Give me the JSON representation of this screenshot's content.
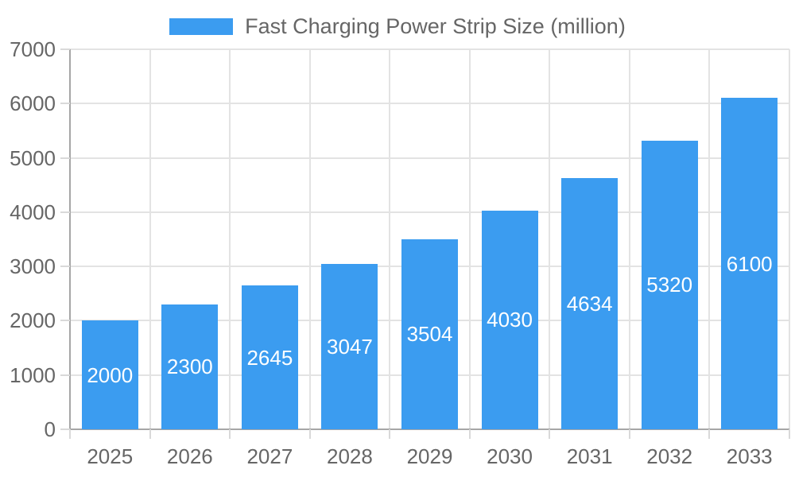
{
  "chart_data": {
    "type": "bar",
    "title": "Fast Charging Power Strip Size (million)",
    "categories": [
      "2025",
      "2026",
      "2027",
      "2028",
      "2029",
      "2030",
      "2031",
      "2032",
      "2033"
    ],
    "values": [
      2000,
      2300,
      2645,
      3047,
      3504,
      4030,
      4634,
      5320,
      6100
    ],
    "series_name": "Fast Charging Power Strip Size (million)",
    "xlabel": "",
    "ylabel": "",
    "ylim": [
      0,
      7000
    ],
    "ytick_step": 1000,
    "ytick_labels": [
      "0",
      "1000",
      "2000",
      "3000",
      "4000",
      "5000",
      "6000",
      "7000"
    ],
    "grid": true,
    "legend_position": "top-center",
    "data_labels": "inside-center",
    "colors": {
      "bar": "#3B9CF0",
      "bar_value_text": "#FFFFFF",
      "axis_text": "#666666",
      "gridline": "#E3E3E3",
      "tick": "#D9D9D9",
      "axis_line": "#A6A6A6"
    }
  }
}
